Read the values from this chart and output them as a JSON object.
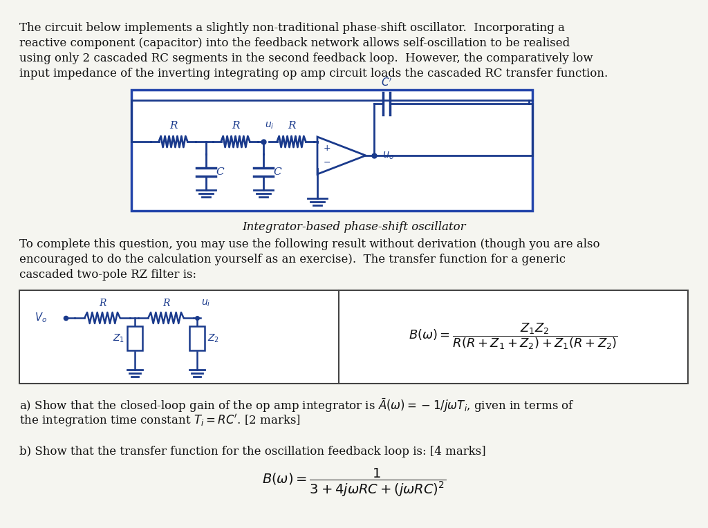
{
  "bg_color": "#f5f5f0",
  "text_color": "#111111",
  "circuit_color": "#1a3a8c",
  "para1_lines": [
    "The circuit below implements a slightly non-traditional phase-shift oscillator.  Incorporating a",
    "reactive component (capacitor) into the feedback network allows self-oscillation to be realised",
    "using only 2 cascaded RC segments in the second feedback loop.  However, the comparatively low",
    "input impedance of the inverting integrating op amp circuit loads the cascaded RC transfer function."
  ],
  "circuit_caption": "Integrator-based phase-shift oscillator",
  "para2_lines": [
    "To complete this question, you may use the following result without derivation (though you are also",
    "encouraged to do the calculation yourself as an exercise).  The transfer function for a generic",
    "cascaded two-pole RZ filter is:"
  ],
  "part_a_line1": "a) Show that the closed-loop gain of the op amp integrator is $\\bar{A}(\\omega) = -1/j\\omega T_i$, given in terms of",
  "part_a_line2": "the integration time constant $T_i = RC'$. [2 marks]",
  "part_b_line": "b) Show that the transfer function for the oscillation feedback loop is: [4 marks]",
  "formula_box": "$B(\\omega) = \\dfrac{Z_1 Z_2}{R(R + Z_1 + Z_2) + Z_1(R + Z_2)}$",
  "formula_b": "$B(\\omega) = \\dfrac{1}{3 + 4j\\omega RC + (j\\omega RC)^2}$"
}
